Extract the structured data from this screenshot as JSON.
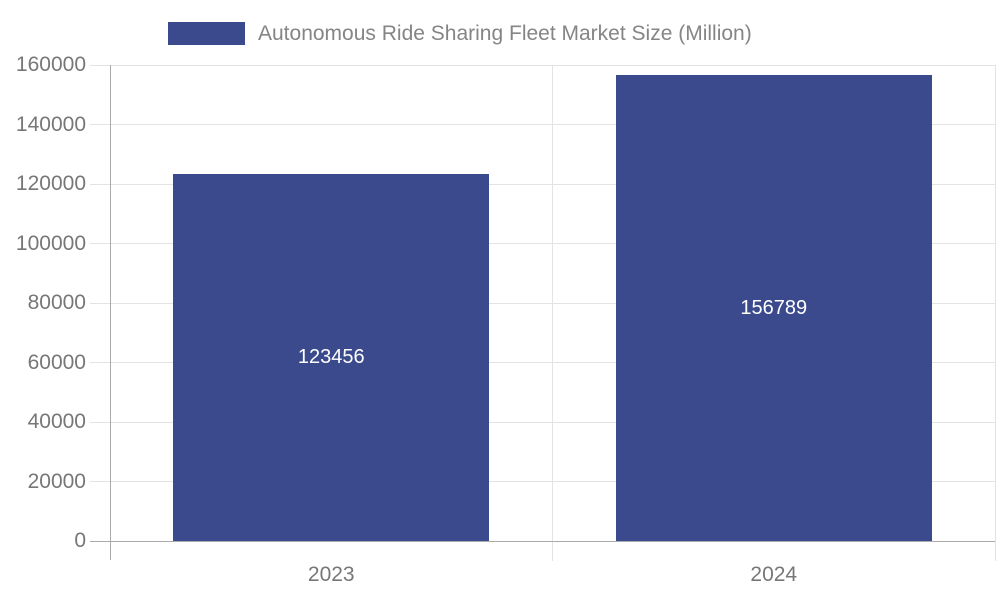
{
  "chart": {
    "title": "Autonomous Ride Sharing Fleet Market Size (Million)"
  },
  "chart_data": {
    "type": "bar",
    "title": "Autonomous Ride Sharing Fleet Market Size (Million)",
    "categories": [
      "2023",
      "2024"
    ],
    "series": [
      {
        "name": "Autonomous Ride Sharing Fleet Market Size (Million)",
        "values": [
          123456,
          156789
        ]
      }
    ],
    "data_labels": [
      "123456",
      "156789"
    ],
    "xlabel": "",
    "ylabel": "",
    "ylim": [
      0,
      160000
    ],
    "ytick_step": 20000,
    "yticks": [
      "0",
      "20000",
      "40000",
      "60000",
      "80000",
      "100000",
      "120000",
      "140000",
      "160000"
    ],
    "grid": true,
    "legend_position": "top",
    "colors": {
      "bar": "#3a4a8c",
      "bar_label_text": "#ffffff",
      "legend_swatch": "#3a4a8c",
      "title_text": "#858585",
      "tick_label_text": "#777777",
      "axis_line": "#aaaaaa",
      "grid_line": "#e3e3e3",
      "background": "#ffffff"
    }
  }
}
